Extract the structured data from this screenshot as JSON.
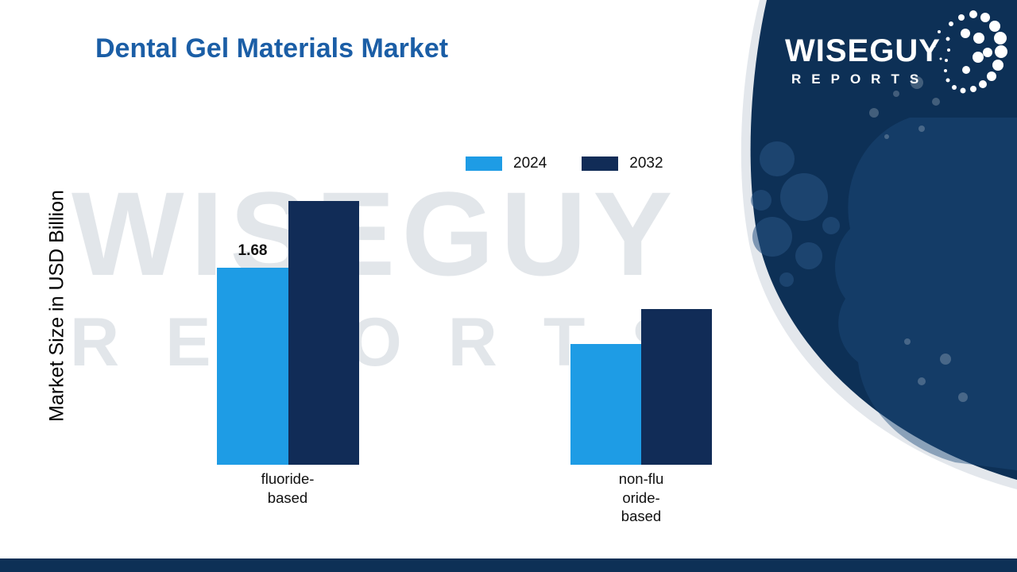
{
  "page": {
    "title": "Dental Gel Materials Market"
  },
  "brand": {
    "logo_line1": "WISEGUY",
    "logo_line2": "REPORTS",
    "watermark_line1": "WISEGUY",
    "watermark_line2": "REPORTS"
  },
  "chart_data": {
    "type": "bar",
    "title": "Dental Gel Materials Market",
    "xlabel": "",
    "ylabel": "Market Size in USD Billion",
    "categories": [
      "fluoride-based",
      "non-fluoride-based"
    ],
    "tick_labels": [
      "fluoride-\nbased",
      "non-flu\noride-\nbased"
    ],
    "series": [
      {
        "name": "2024",
        "color": "#1e9ce5",
        "values": [
          1.68,
          1.03
        ]
      },
      {
        "name": "2032",
        "color": "#112c57",
        "values": [
          2.25,
          1.33
        ]
      }
    ],
    "data_labels": [
      {
        "series": "2024",
        "category": "fluoride-based",
        "text": "1.68"
      }
    ],
    "ylim": [
      0,
      2.4
    ],
    "grid": false,
    "legend_position": "top-right",
    "note": "Only the 1.68 data label is printed on the chart; remaining values estimated from bar heights."
  },
  "colors": {
    "title_blue": "#1b5ea6",
    "bar_2024": "#1e9ce5",
    "bar_2032": "#112c57",
    "panel_navy": "#0d3056",
    "footer_navy": "#0d3056",
    "watermark_gray": "#c7ced6"
  }
}
